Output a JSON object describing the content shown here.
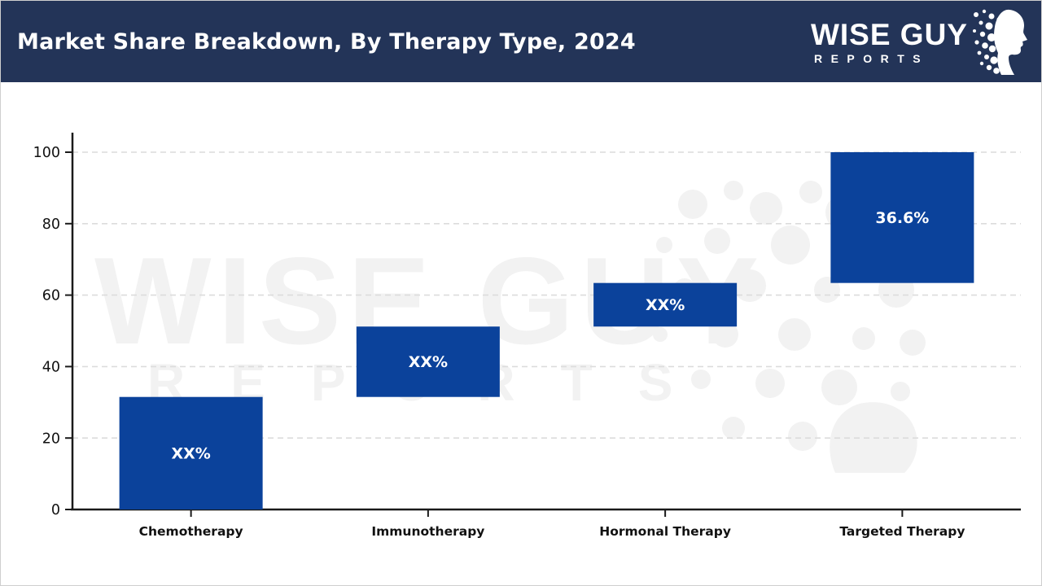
{
  "header": {
    "title": "Market Share Breakdown, By Therapy Type, 2024",
    "bg_color": "#233458",
    "logo": {
      "wordmark": "WISE GUY",
      "subtext": "REPORTS"
    }
  },
  "watermark": {
    "line1": "WISE GUY",
    "line2": "REPORTS"
  },
  "chart_data": {
    "type": "bar",
    "variant": "waterfall",
    "categories": [
      "Chemotherapy",
      "Immunotherapy",
      "Hormonal Therapy",
      "Targeted Therapy"
    ],
    "segments": [
      {
        "category": "Chemotherapy",
        "start": 0,
        "end": 31.5,
        "value": 31.5,
        "label": "XX%"
      },
      {
        "category": "Immunotherapy",
        "start": 31.5,
        "end": 51.2,
        "value": 19.7,
        "label": "XX%"
      },
      {
        "category": "Hormonal Therapy",
        "start": 51.2,
        "end": 63.4,
        "value": 12.2,
        "label": "XX%"
      },
      {
        "category": "Targeted Therapy",
        "start": 63.4,
        "end": 100,
        "value": 36.6,
        "label": "36.6%"
      }
    ],
    "xlabel": "",
    "ylabel": "",
    "ylim": [
      0,
      100
    ],
    "yticks": [
      0,
      20,
      40,
      60,
      80,
      100
    ],
    "grid": "horizontal-dashed",
    "legend": "none",
    "bar_color": "#0b429b",
    "bar_label_color": "#ffffff",
    "axis_color": "#1a1a1a",
    "tick_label_color": "#111111",
    "grid_color": "#dcdcdc"
  }
}
